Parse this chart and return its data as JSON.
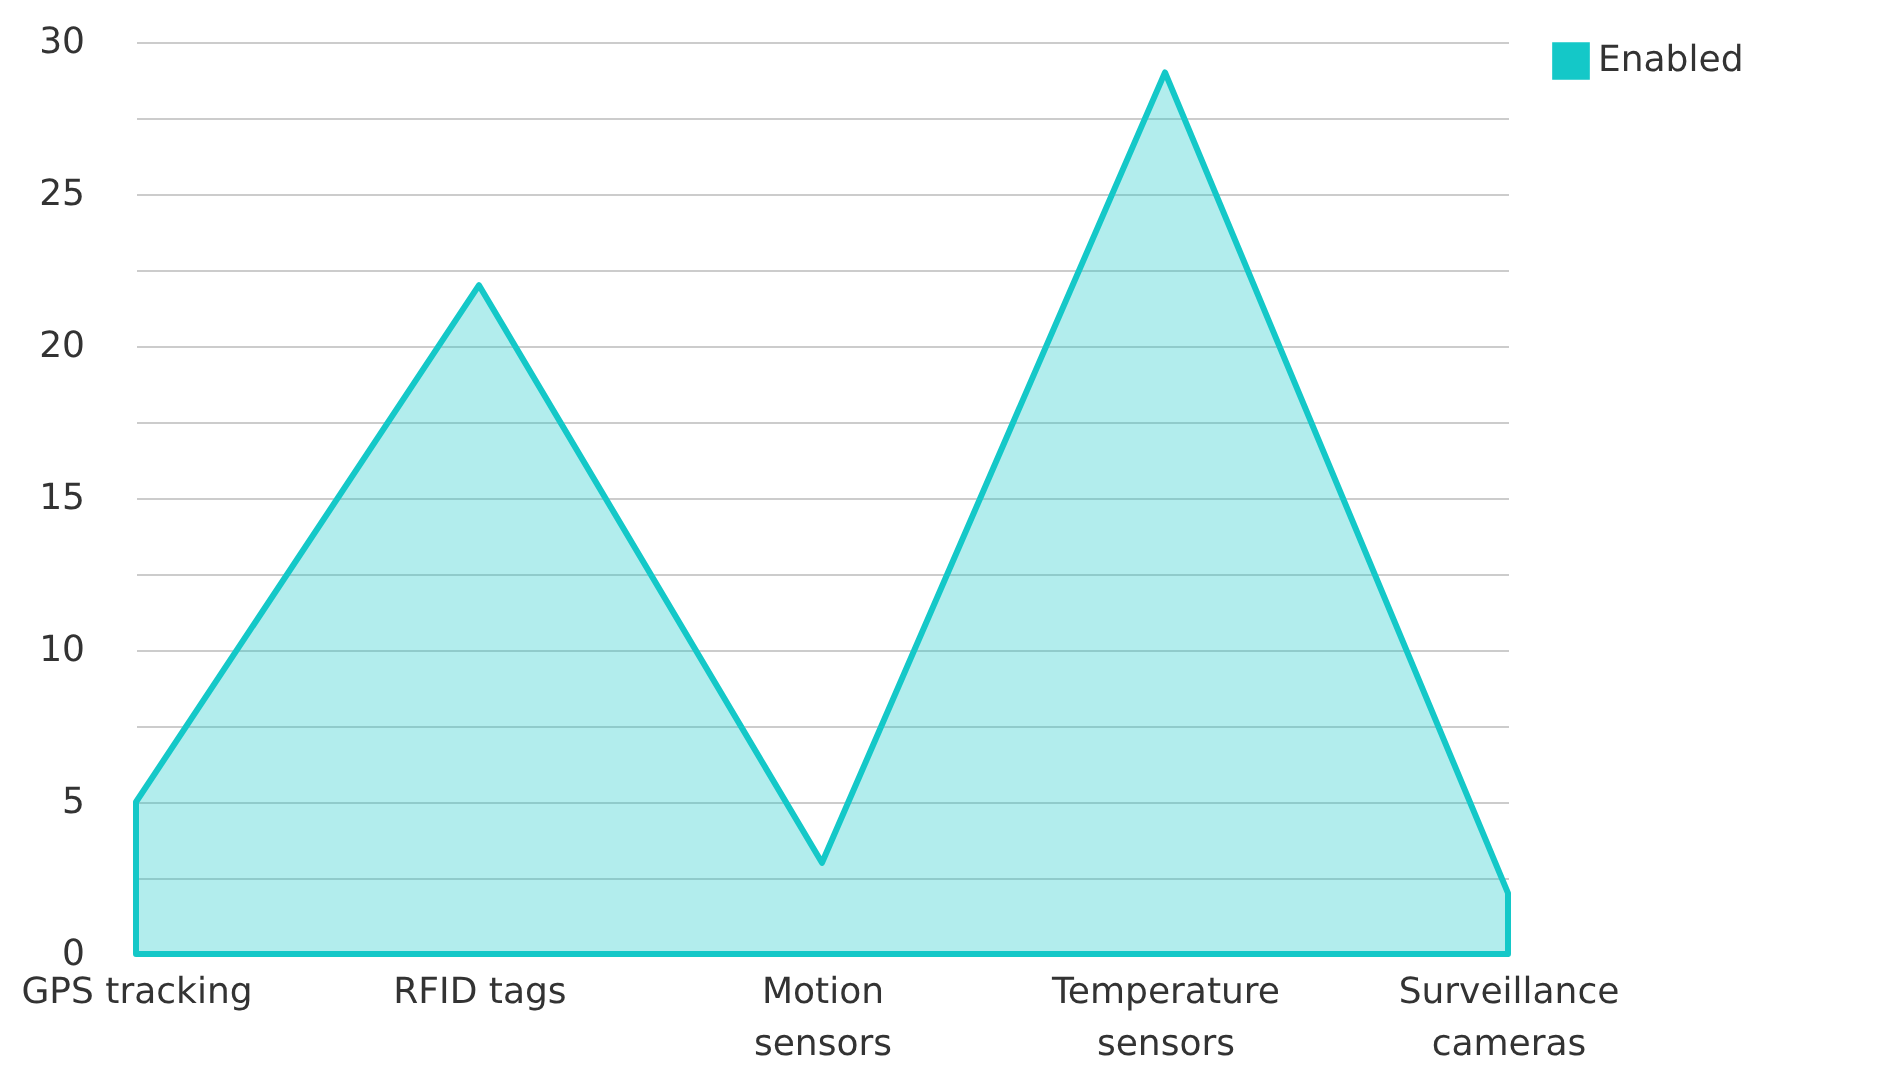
{
  "chart_data": {
    "type": "area",
    "categories": [
      "GPS tracking",
      "RFID tags",
      "Motion sensors",
      "Temperature sensors",
      "Surveillance cameras"
    ],
    "series": [
      {
        "name": "Enabled",
        "color": "#14c8c8",
        "values": [
          5,
          22,
          3,
          29,
          2
        ]
      }
    ],
    "ylim": [
      0,
      30
    ],
    "yticks": [
      0,
      {
        "value": 2.5,
        "label": null
      },
      5,
      {
        "value": 7.5,
        "label": null
      },
      10,
      {
        "value": 12.5,
        "label": null
      },
      15,
      {
        "value": 17.5,
        "label": null
      },
      20,
      {
        "value": 22.5,
        "label": null
      },
      25,
      {
        "value": 27.5,
        "label": null
      },
      30
    ],
    "grid": "y",
    "legend": "top right"
  }
}
